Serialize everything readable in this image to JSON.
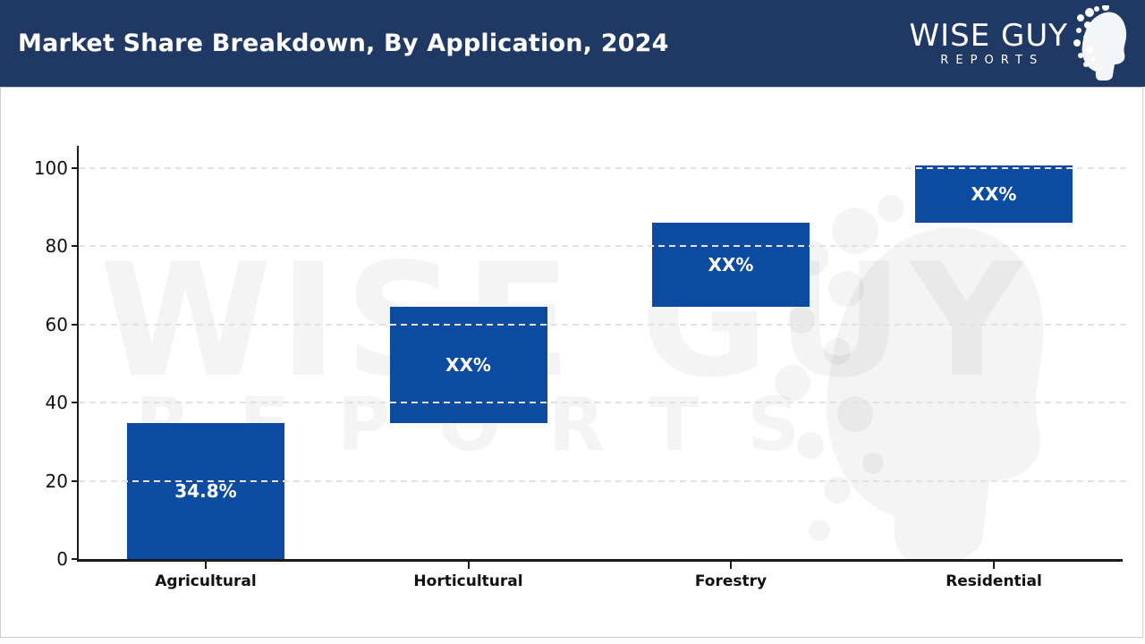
{
  "header": {
    "title": "Market Share Breakdown, By Application, 2024",
    "logo": {
      "name": "Wise Guy Reports",
      "line1": "WISE GUY",
      "line2": "REPORTS"
    }
  },
  "watermark": {
    "line1": "WISE GUY",
    "line2": "REPORTS"
  },
  "colors": {
    "header_bg": "#203864",
    "bar": "#0c4ca0",
    "bar_label": "#ffffff",
    "axis": "#1a1a1a",
    "grid": "#e2e2e2",
    "border": "#cccccc"
  },
  "chart_data": {
    "type": "bar",
    "subtype": "waterfall-floating-bars",
    "title": "Market Share Breakdown, By Application, 2024",
    "categories": [
      "Agricultural",
      "Horticultural",
      "Forestry",
      "Residential"
    ],
    "series": [
      {
        "name": "Market share (%)",
        "segments": [
          {
            "category": "Agricultural",
            "start": 0,
            "end": 34.8,
            "label": "34.8%"
          },
          {
            "category": "Horticultural",
            "start": 34.8,
            "end": 64.5,
            "label": "XX%"
          },
          {
            "category": "Forestry",
            "start": 64.5,
            "end": 86,
            "label": "XX%"
          },
          {
            "category": "Residential",
            "start": 86,
            "end": 100.5,
            "label": "XX%"
          }
        ]
      }
    ],
    "xlabel": "",
    "ylabel": "",
    "ylim": [
      0,
      100
    ],
    "yticks": [
      0,
      20,
      40,
      60,
      80,
      100
    ],
    "grid": "horizontal-dashed",
    "legend": "none"
  }
}
